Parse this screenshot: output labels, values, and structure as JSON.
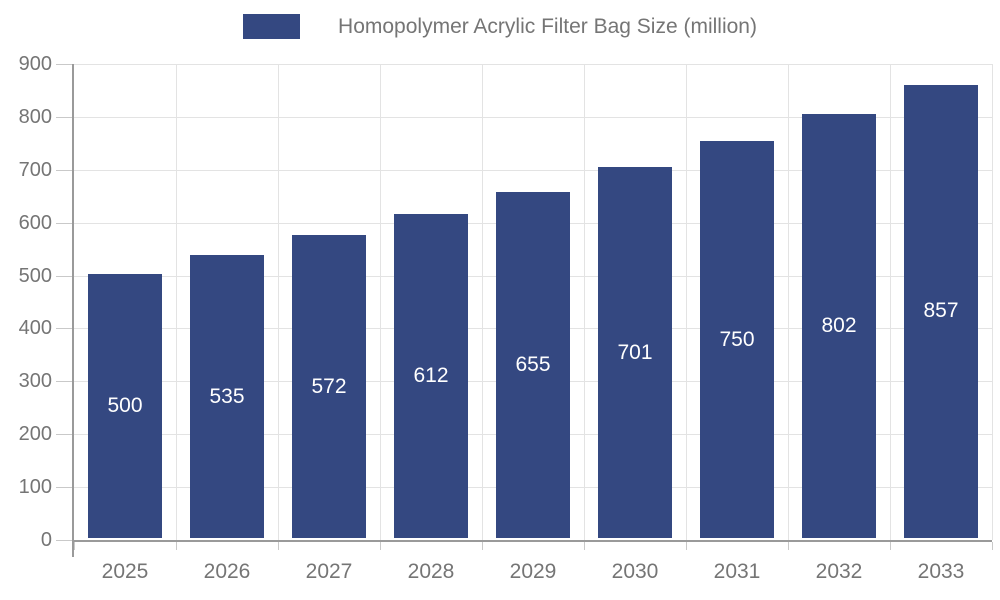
{
  "legend": {
    "label": "Homopolymer Acrylic Filter Bag Size (million)"
  },
  "chart_data": {
    "type": "bar",
    "title": "Homopolymer Acrylic Filter Bag Size (million)",
    "categories": [
      "2025",
      "2026",
      "2027",
      "2028",
      "2029",
      "2030",
      "2031",
      "2032",
      "2033"
    ],
    "values": [
      500,
      535,
      572,
      612,
      655,
      701,
      750,
      802,
      857
    ],
    "bar_labels": [
      "500",
      "535",
      "572",
      "612",
      "655",
      "701",
      "750",
      "802",
      "857"
    ],
    "xlabel": "",
    "ylabel": "",
    "ylim": [
      0,
      900
    ],
    "y_ticks": [
      0,
      100,
      200,
      300,
      400,
      500,
      600,
      700,
      800,
      900
    ],
    "grid": true,
    "legend_position": "top",
    "colors": {
      "bar": "#344881",
      "bar_label": "#ffffff",
      "axis_text": "#757575",
      "axis_line": "#9a9a9a",
      "grid_line": "#e3e3e3",
      "tick_line": "#c9c9c9",
      "background": "#ffffff"
    }
  }
}
